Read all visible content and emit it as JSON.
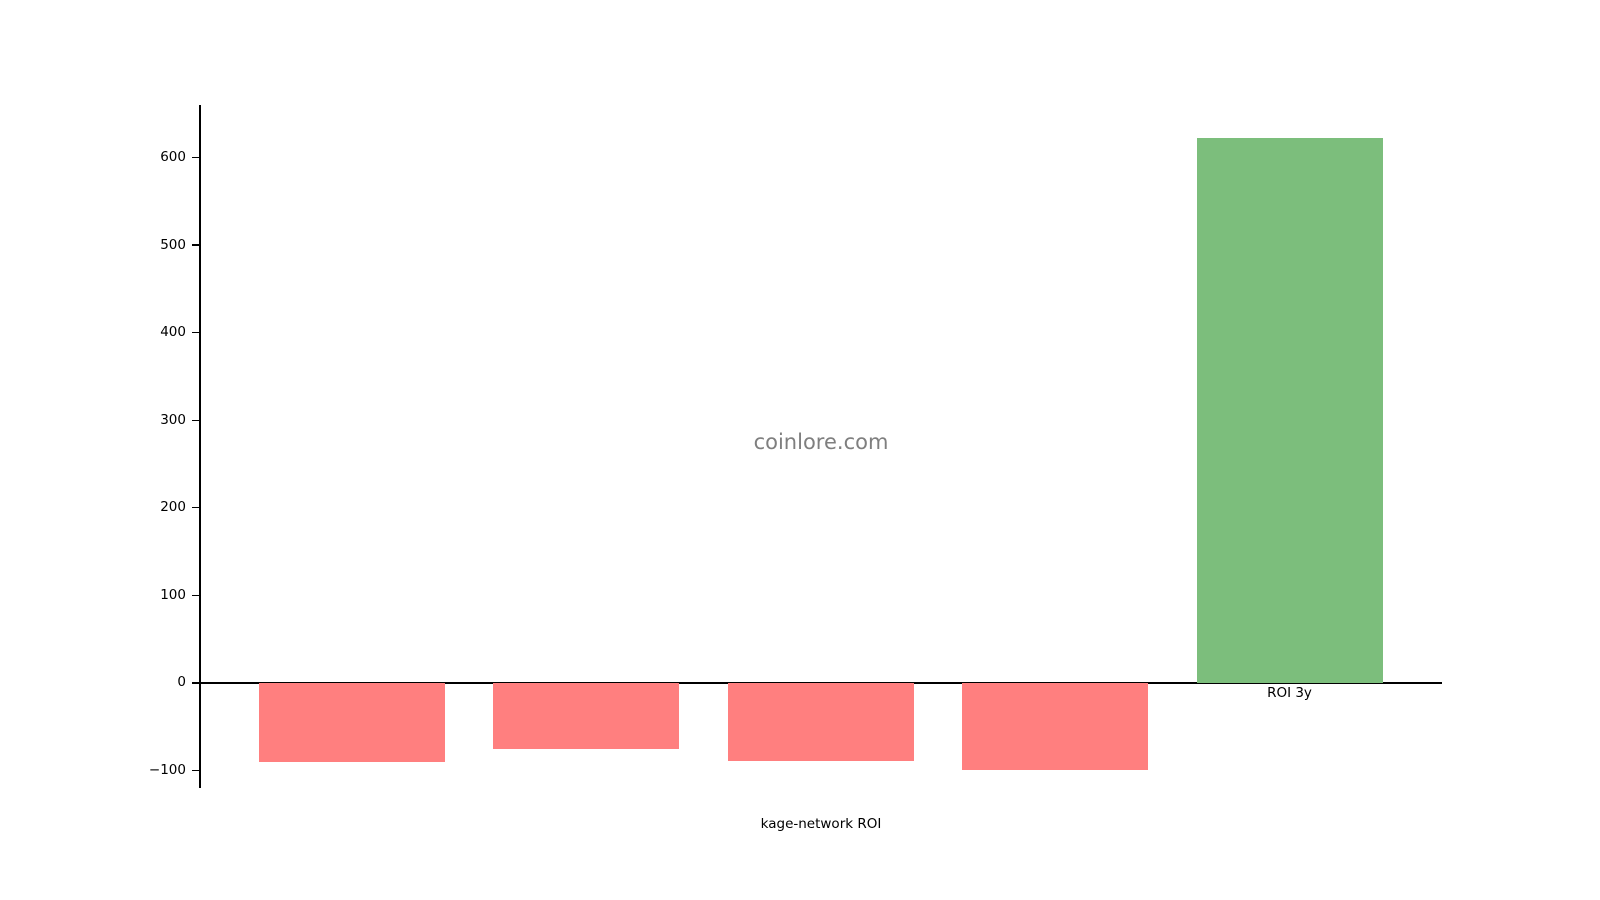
{
  "watermark": "coinlore.com",
  "chart_data": {
    "type": "bar",
    "categories": [
      "",
      "",
      "",
      "",
      "ROI 3y"
    ],
    "values": [
      -90,
      -75,
      -89,
      -100,
      622
    ],
    "title": "",
    "xlabel": "kage-network ROI",
    "ylabel": "",
    "ylim": [
      -120,
      660
    ],
    "yticks": [
      -100,
      0,
      100,
      200,
      300,
      400,
      500,
      600
    ],
    "yticklabels": [
      "−100",
      "0",
      "100",
      "200",
      "300",
      "400",
      "500",
      "600"
    ],
    "grid": false,
    "legend": "none",
    "negative_color": "#ff7f7f",
    "positive_color": "#7cbe7c",
    "axis_color": "#000000",
    "watermark_color": "#7f7f7f"
  }
}
